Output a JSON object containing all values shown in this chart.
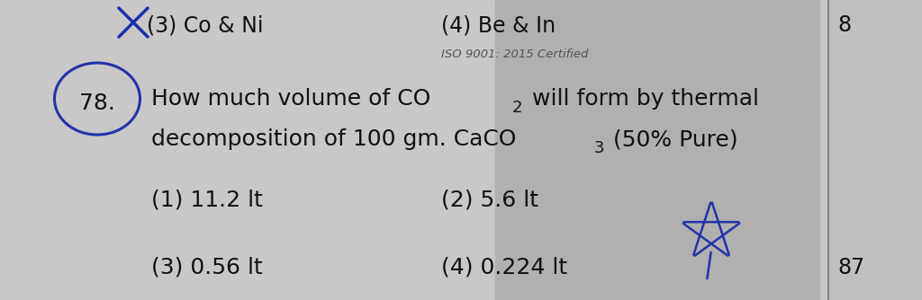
{
  "bg_color": "#c8c8c8",
  "text_color": "#111111",
  "prev_co_ni": "Co & Ni",
  "prev_option4": "(4) Be & In",
  "iso_text": "ISO 9001: 2015 Certified",
  "q_number": "78.",
  "opt1": "(1) 11.2 lt",
  "opt2": "(2) 5.6 lt",
  "opt3": "(3) 0.56 lt",
  "opt4": "(4) 0.224 lt",
  "right_num_top": "8",
  "right_num_bot": "87"
}
